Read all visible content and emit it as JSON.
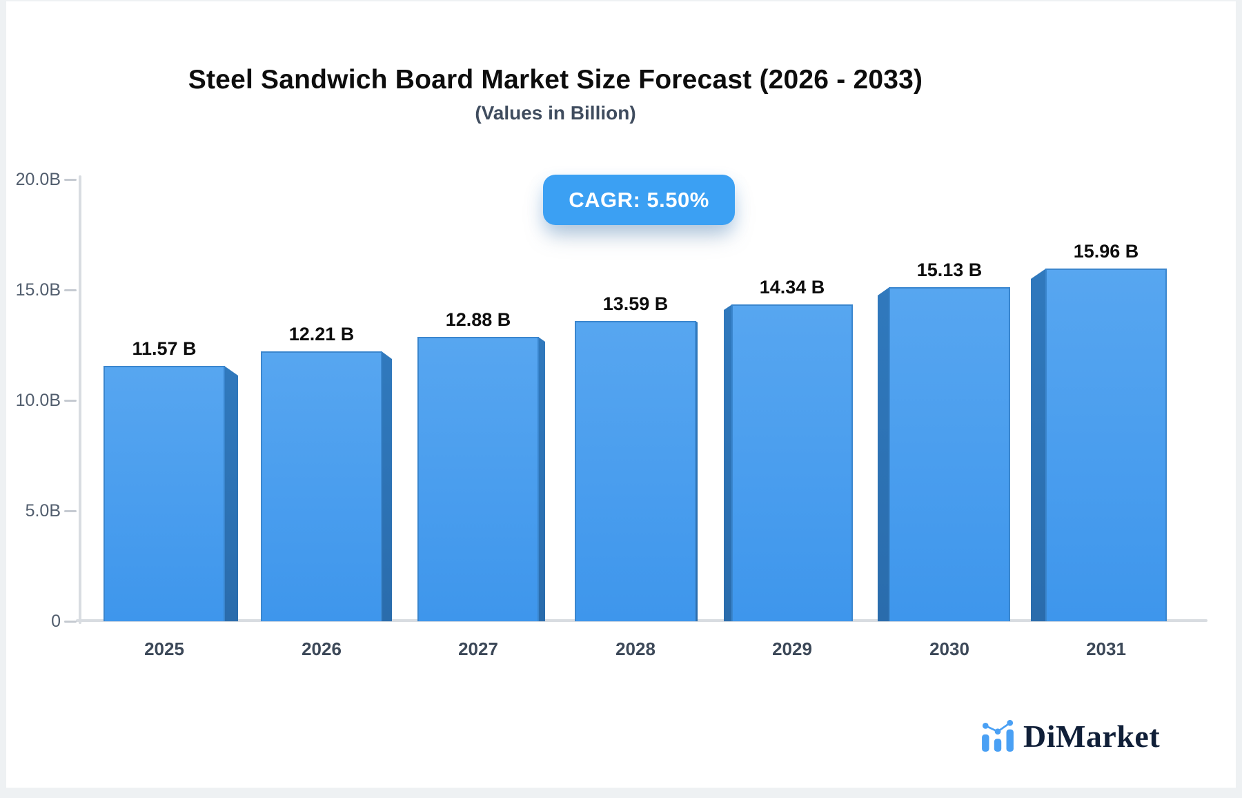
{
  "title": "Steel Sandwich Board Market Size Forecast (2026 - 2033)",
  "subtitle": "(Values in Billion)",
  "cagr_badge": "CAGR: 5.50%",
  "brand": {
    "name": "DiMarket",
    "icon": "bar-chart-logo-icon"
  },
  "colors": {
    "badge_bg": "#3ba0f3",
    "bar_face_top": "#57a6f0",
    "bar_face_bottom": "#3e96ec",
    "bar_border": "#3a86ce",
    "bar_side_top": "#3079bd",
    "bar_side_bottom": "#2a6cac",
    "axis_line": "#d8dce1",
    "tick_dash": "#c5cad1",
    "tick_text": "#515d6d",
    "year_text": "#3c4858",
    "value_text": "#0d0d0d",
    "title_text": "#0d0d0d",
    "subtitle_text": "#3f4c5e",
    "brand_text": "#101f38",
    "brand_blue": "#4aa0f4"
  },
  "chart_data": {
    "type": "bar",
    "title": "Steel Sandwich Board Market Size Forecast (2026 - 2033)",
    "subtitle": "(Values in Billion)",
    "categories": [
      "2025",
      "2026",
      "2027",
      "2028",
      "2029",
      "2030",
      "2031"
    ],
    "values": [
      11.57,
      12.21,
      12.88,
      13.59,
      14.34,
      15.13,
      15.96
    ],
    "bar_labels": [
      "11.57 B",
      "12.21 B",
      "12.88 B",
      "13.59 B",
      "14.34 B",
      "15.13 B",
      "15.96 B"
    ],
    "xlabel": "",
    "ylabel": "",
    "ylim": [
      0,
      20
    ],
    "yticks": [
      {
        "label": "20.0B",
        "value": 20
      },
      {
        "label": "15.0B",
        "value": 15
      },
      {
        "label": "10.0B",
        "value": 10
      },
      {
        "label": "5.0B",
        "value": 5
      },
      {
        "label": "0",
        "value": 0
      }
    ],
    "grid": false,
    "legend": null,
    "style": "3d-extruded-bars"
  }
}
